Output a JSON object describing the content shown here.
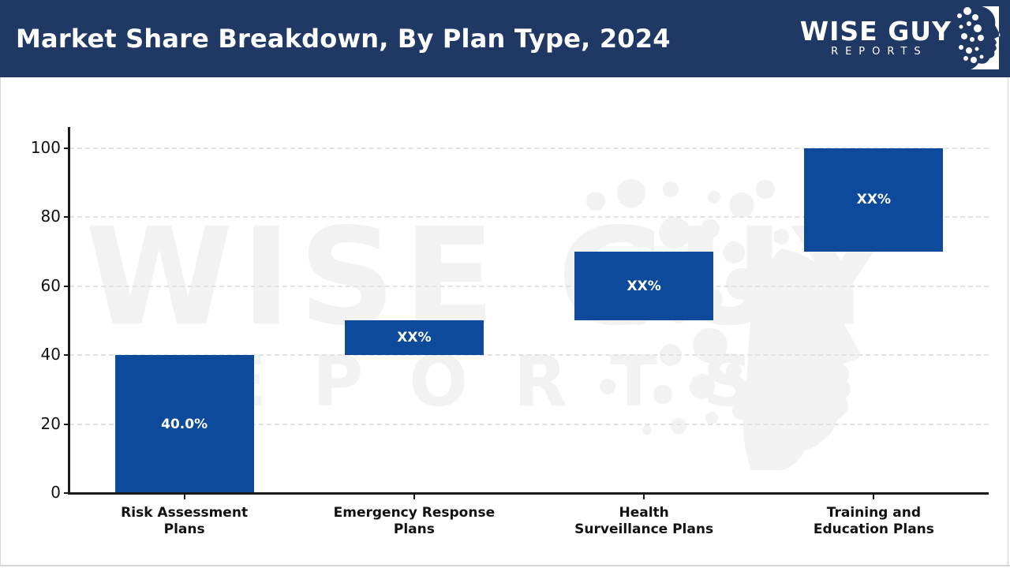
{
  "header": {
    "title": "Market Share Breakdown, By Plan Type, 2024",
    "logo": {
      "line1": "WISE GUY",
      "line2": "REPORTS"
    }
  },
  "watermark": {
    "line1": "WISE GUY",
    "line2": "REPORTS"
  },
  "colors": {
    "header_bg": "#1f3864",
    "bar_blue": "#0d4a9c",
    "watermark_gray": "#f2f2f2",
    "axis_black": "#1a1a1a"
  },
  "chart_data": {
    "type": "bar",
    "subtype": "waterfall",
    "title": "Market Share Breakdown, By Plan Type, 2024",
    "categories": [
      [
        "Risk Assessment",
        "Plans"
      ],
      [
        "Emergency Response",
        "Plans"
      ],
      [
        "Health",
        "Surveillance Plans"
      ],
      [
        "Training and",
        "Education Plans"
      ]
    ],
    "segments": [
      {
        "start": 0,
        "end": 40,
        "label": "40.0%"
      },
      {
        "start": 40,
        "end": 50,
        "label": "XX%"
      },
      {
        "start": 50,
        "end": 70,
        "label": "XX%"
      },
      {
        "start": 70,
        "end": 100,
        "label": "XX%"
      }
    ],
    "yticks": [
      0,
      20,
      40,
      60,
      80,
      100
    ],
    "ylim": [
      0,
      105.6
    ],
    "xlabel": "",
    "ylabel": "",
    "grid": "horizontal-dashed",
    "legend": "none",
    "bar_color": "#0d4a9c",
    "bar_label_color": "#ffffff"
  }
}
